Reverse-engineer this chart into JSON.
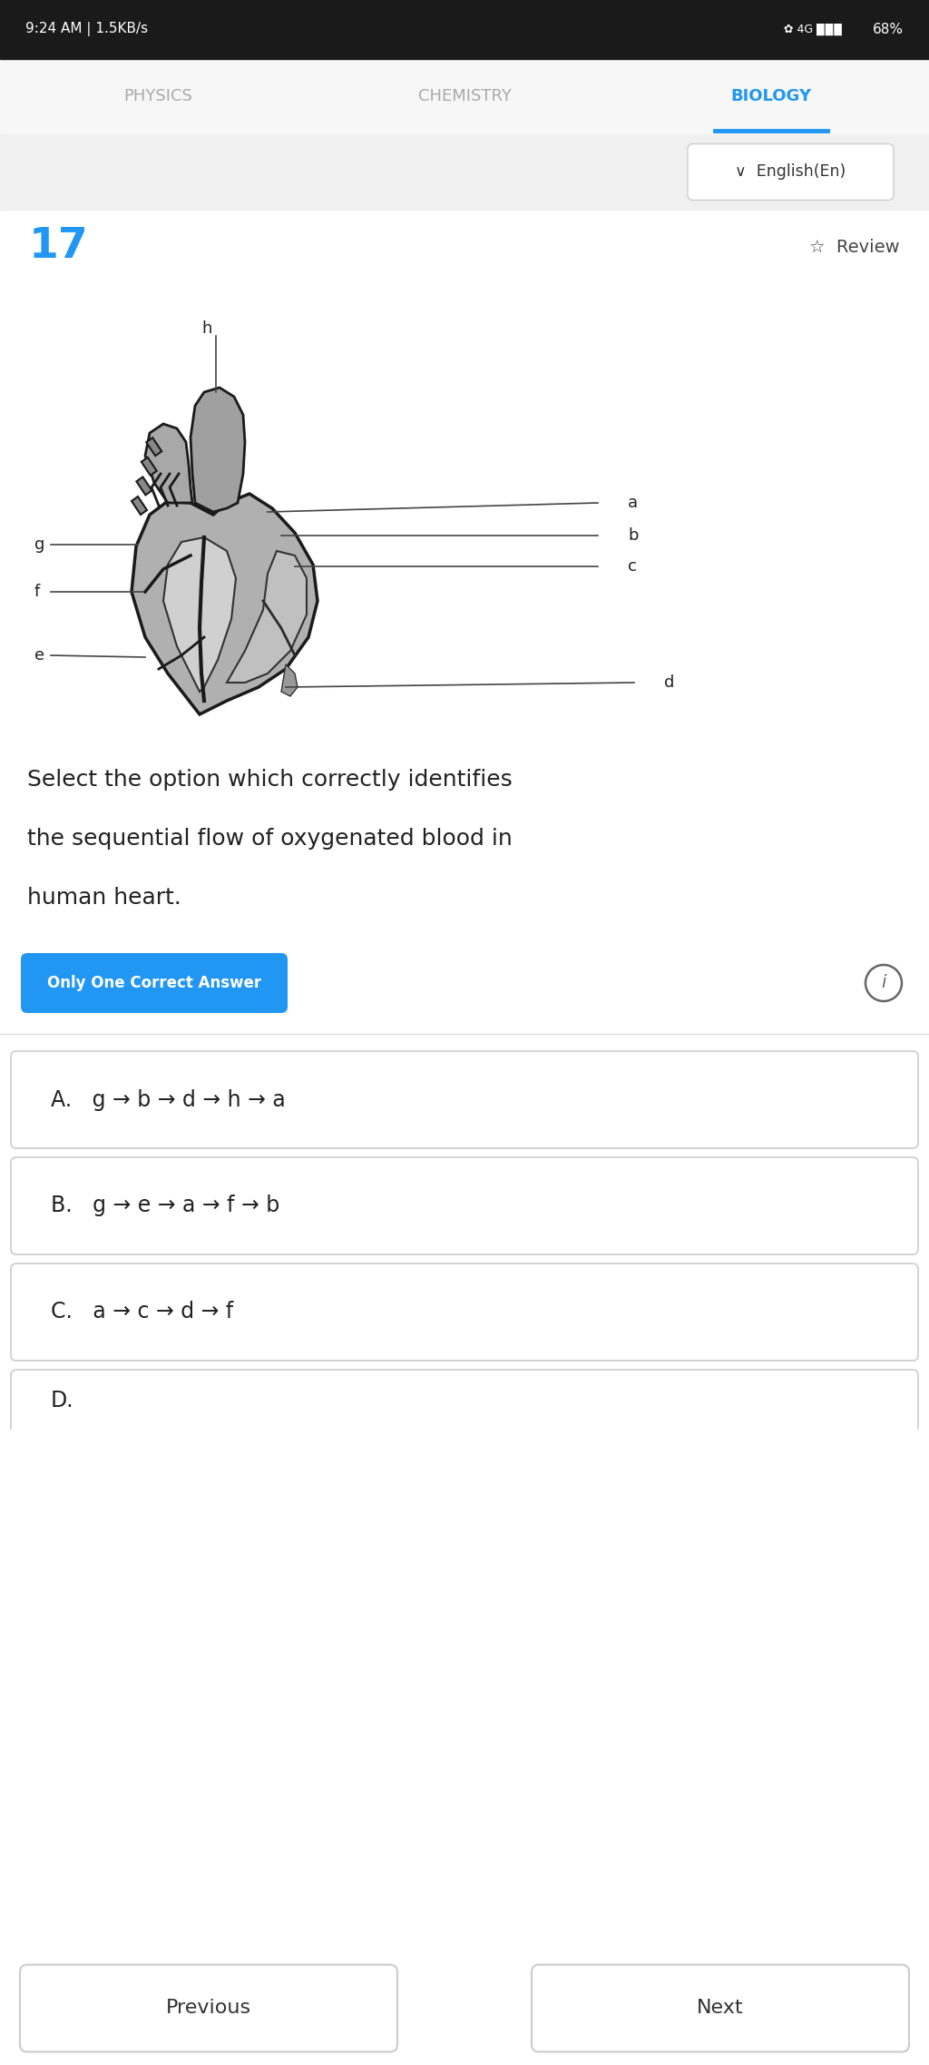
{
  "status_bar_text": "9:24 AM | 1.5KB/s",
  "status_bar_right": "68%",
  "tab_physics": "PHYSICS",
  "tab_chemistry": "CHEMISTRY",
  "tab_biology": "BIOLOGY",
  "tab_biology_color": "#2196F3",
  "tab_inactive_color": "#AAAAAA",
  "question_number": "17",
  "question_number_color": "#2196F3",
  "review_text": "☆  Review",
  "question_text_line1": "Select the option which correctly identifies",
  "question_text_line2": "the sequential flow of oxygenated blood in",
  "question_text_line3": "human heart.",
  "only_one_answer_text": "Only One Correct Answer",
  "only_one_btn_color": "#2196F3",
  "options": [
    {
      "label": "A.",
      "text": "g → b → d → h → a"
    },
    {
      "label": "B.",
      "text": "g → e → a → f → b"
    },
    {
      "label": "C.",
      "text": "a → c → d → f"
    }
  ],
  "option_d_partial": "D.",
  "bg_color": "#FFFFFF",
  "statusbar_bg": "#1A1A1A",
  "prev_btn_text": "Previous",
  "next_btn_text": "Next"
}
